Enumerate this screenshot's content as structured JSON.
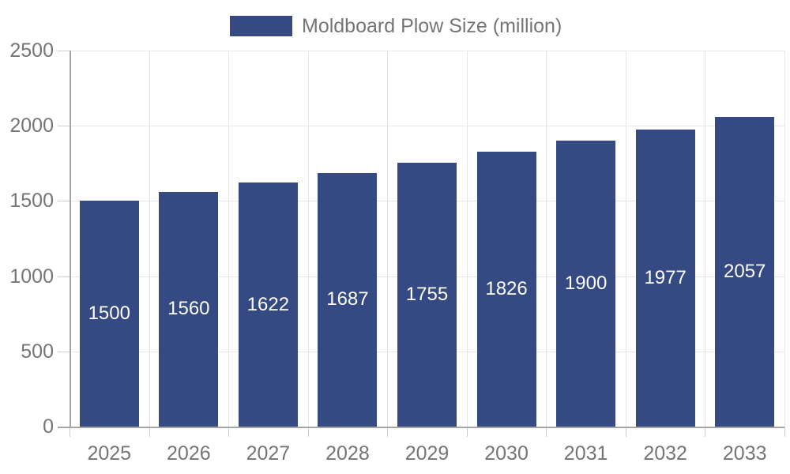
{
  "legend": {
    "label": "Moldboard Plow Size (million)"
  },
  "chart_data": {
    "type": "bar",
    "title": "Moldboard Plow Size (million)",
    "categories": [
      "2025",
      "2026",
      "2027",
      "2028",
      "2029",
      "2030",
      "2031",
      "2032",
      "2033"
    ],
    "series": [
      {
        "name": "Moldboard Plow Size (million)",
        "values": [
          1500,
          1560,
          1622,
          1687,
          1755,
          1826,
          1900,
          1977,
          2057
        ]
      }
    ],
    "xlabel": "",
    "ylabel": "",
    "ylim": [
      0,
      2500
    ],
    "ytick_interval": 500,
    "ytick_labels": [
      "0",
      "500",
      "1000",
      "1500",
      "2000",
      "2500"
    ],
    "grid": true,
    "legend_position": "top-center",
    "value_labels": "inside-middle-white"
  },
  "colors": {
    "bar": "#354a82",
    "axis_label": "#757578",
    "legend_text": "#757578",
    "gridline": "#e6e6e6",
    "axis_line": "#a6a6a6",
    "tick": "#cccccc",
    "value_label": "#ffffff",
    "background": "#ffffff"
  }
}
